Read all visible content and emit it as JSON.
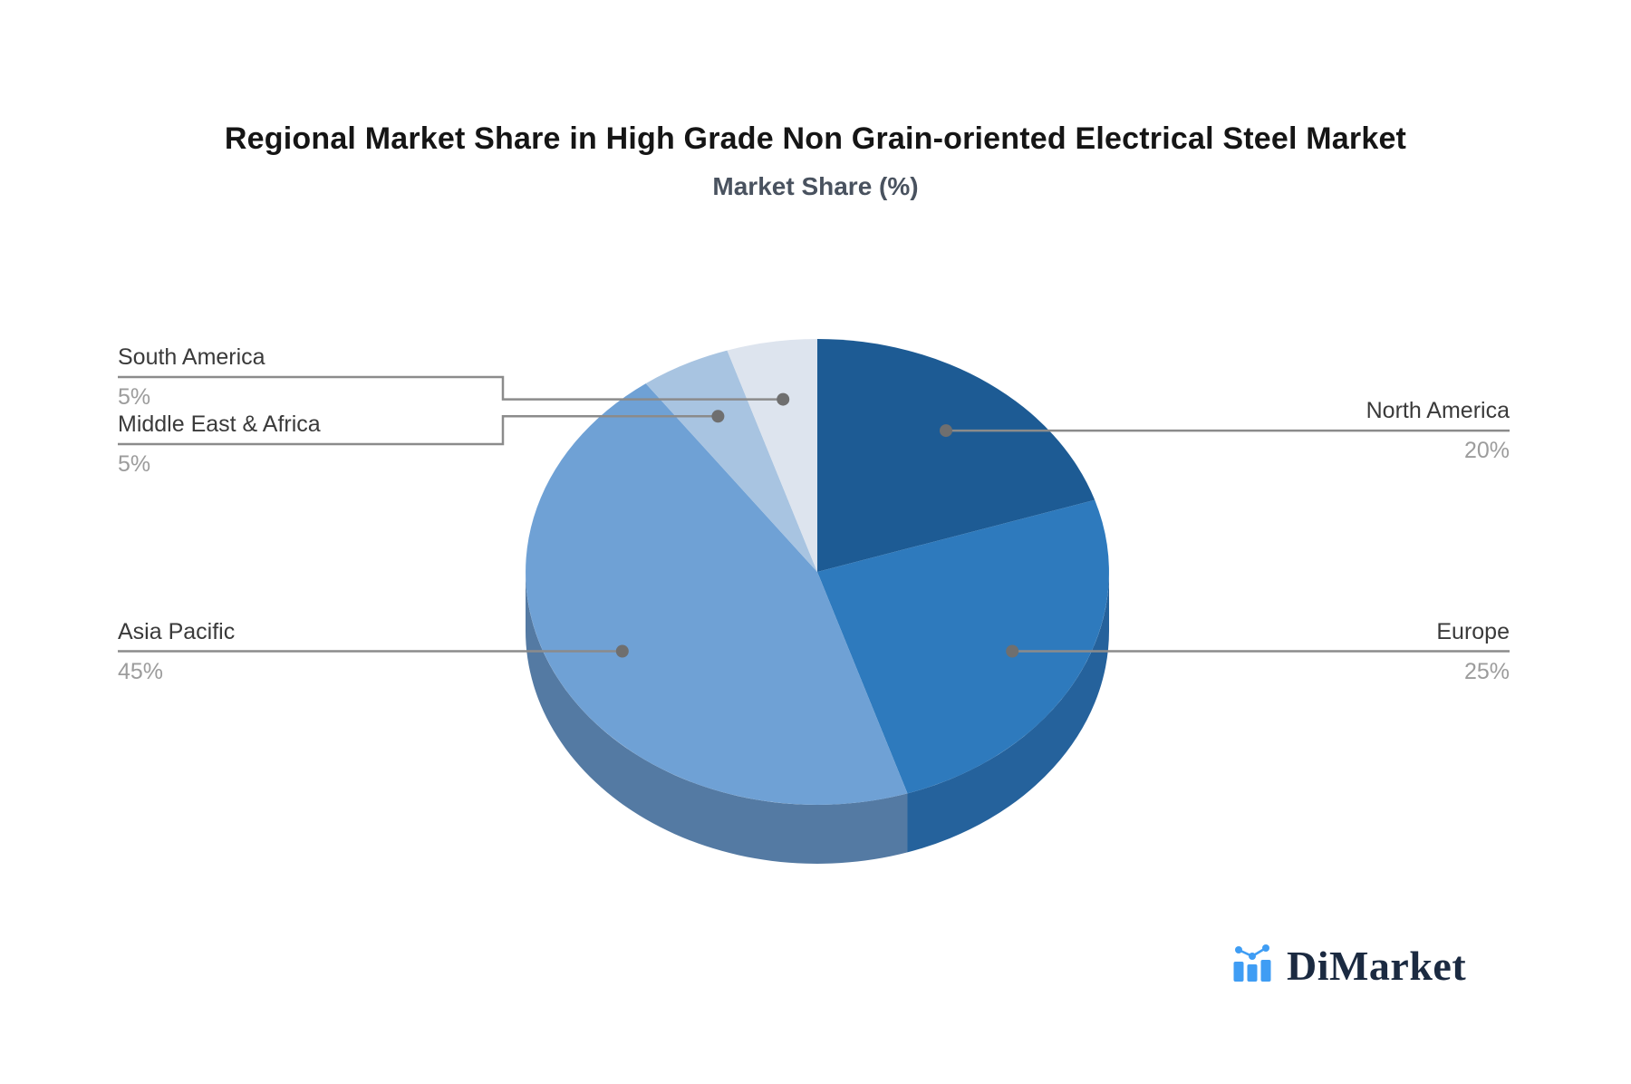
{
  "header": {
    "title": "Regional Market Share in High Grade Non Grain-oriented Electrical Steel Market",
    "subtitle": "Market Share (%)"
  },
  "chart_data": {
    "type": "pie",
    "style": "3d",
    "title": "Regional Market Share in High Grade Non Grain-oriented Electrical Steel Market",
    "subtitle": "Market Share (%)",
    "unit": "percent",
    "start_angle_deg": 0,
    "direction": "clockwise",
    "legend_position": "callout-labels",
    "series": [
      {
        "label": "North America",
        "value": 20,
        "display": "20%",
        "color": "#1d5b94",
        "depth_color": "#174a7a"
      },
      {
        "label": "Europe",
        "value": 25,
        "display": "25%",
        "color": "#2e7abd",
        "depth_color": "#25629c"
      },
      {
        "label": "Asia Pacific",
        "value": 45,
        "display": "45%",
        "color": "#6fa1d5",
        "depth_color": "#547aa3"
      },
      {
        "label": "Middle East & Africa",
        "value": 5,
        "display": "5%",
        "color": "#a8c4e1",
        "depth_color": "#8aa6c4"
      },
      {
        "label": "South America",
        "value": 5,
        "display": "5%",
        "color": "#dde4ee",
        "depth_color": "#b8c3d4"
      }
    ],
    "callout_line_color": "#8b8b8b",
    "callout_dot_color": "#6f6f6f"
  },
  "logo": {
    "text": "DiMarket",
    "icon": "bar-chart-icon",
    "icon_color": "#3f9df4",
    "text_color": "#1b2a41"
  }
}
